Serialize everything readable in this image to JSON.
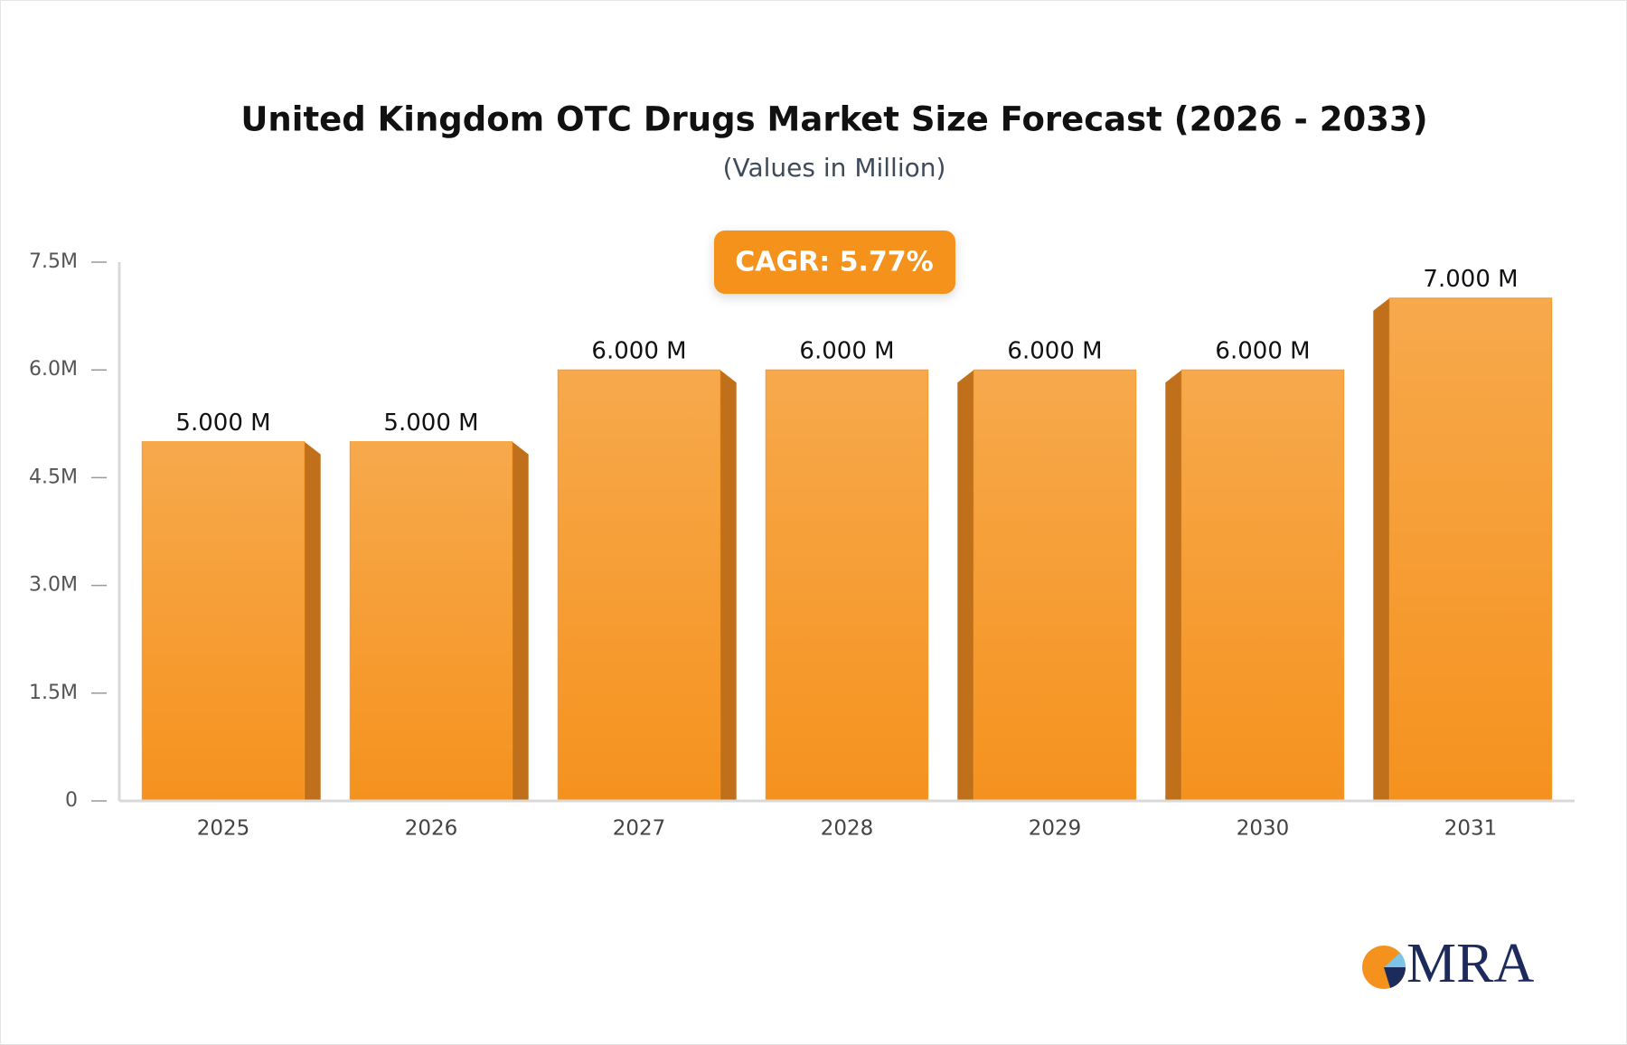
{
  "chart_data": {
    "type": "bar",
    "title": "United Kingdom OTC Drugs Market Size Forecast (2026 - 2033)",
    "subtitle": "(Values in Million)",
    "annotation": "CAGR: 5.77%",
    "categories": [
      "2025",
      "2026",
      "2027",
      "2028",
      "2029",
      "2030",
      "2031"
    ],
    "values": [
      5,
      5,
      6,
      6,
      6,
      6,
      7
    ],
    "value_labels": [
      "5.000 M",
      "5.000 M",
      "6.000 M",
      "6.000 M",
      "6.000 M",
      "6.000 M",
      "7.000 M"
    ],
    "color": "#f59a2c",
    "ylim": [
      0,
      7.5
    ],
    "yticks": [
      {
        "value": 0,
        "label": "0"
      },
      {
        "value": 1.5,
        "label": "1.5M"
      },
      {
        "value": 3,
        "label": "3.0M"
      },
      {
        "value": 4.5,
        "label": "4.5M"
      },
      {
        "value": 6,
        "label": "6.0M"
      },
      {
        "value": 7.5,
        "label": "7.5M"
      }
    ],
    "grid": false
  },
  "brand": "MRA"
}
